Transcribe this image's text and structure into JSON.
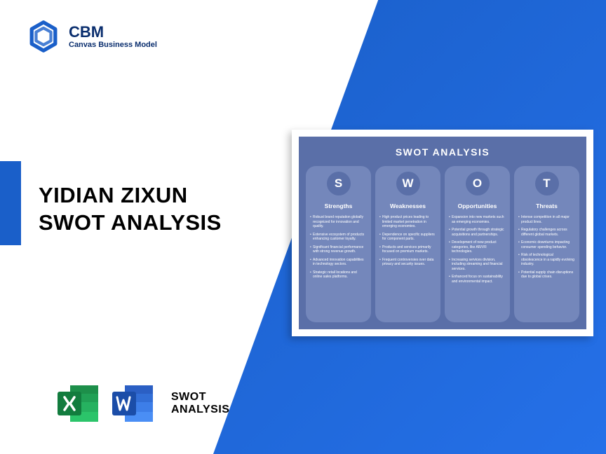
{
  "brand": {
    "title": "CBM",
    "subtitle": "Canvas Business Model",
    "logo_color": "#1a5fc9"
  },
  "main": {
    "title_line1": "YIDIAN ZIXUN",
    "title_line2": "SWOT ANALYSIS"
  },
  "bottom": {
    "label_line1": "SWOT",
    "label_line2": "ANALYSIS",
    "excel_color": "#1d8f4a",
    "word_color": "#1858c7"
  },
  "swot_card": {
    "title": "SWOT ANALYSIS",
    "panel_bg": "#5a6fa8",
    "column_bg": "#7487bb",
    "circle_bg": "#5a6fa8",
    "columns": [
      {
        "letter": "S",
        "heading": "Strengths",
        "items": [
          "Robust brand reputation globally recognized for innovation and quality.",
          "Extensive ecosystem of products enhancing customer loyalty.",
          "Significant financial performance with strong revenue growth.",
          "Advanced innovation capabilities in technology sectors.",
          "Strategic retail locations and online sales platforms."
        ]
      },
      {
        "letter": "W",
        "heading": "Weaknesses",
        "items": [
          "High product prices leading to limited market penetration in emerging economies.",
          "Dependence on specific suppliers for component parts.",
          "Products and services primarily focused on premium markets.",
          "Frequent controversies over data privacy and security issues."
        ]
      },
      {
        "letter": "O",
        "heading": "Opportunities",
        "items": [
          "Expansion into new markets such as emerging economies.",
          "Potential growth through strategic acquisitions and partnerships.",
          "Development of new product categories, like AR/VR technologies.",
          "Increasing services division, including streaming and financial services.",
          "Enhanced focus on sustainability and environmental impact."
        ]
      },
      {
        "letter": "T",
        "heading": "Threats",
        "items": [
          "Intense competition in all major product lines.",
          "Regulatory challenges across different global markets.",
          "Economic downturns impacting consumer spending behavior.",
          "Risk of technological obsolescence in a rapidly evolving industry.",
          "Potential supply chain disruptions due to global crises."
        ]
      }
    ]
  }
}
